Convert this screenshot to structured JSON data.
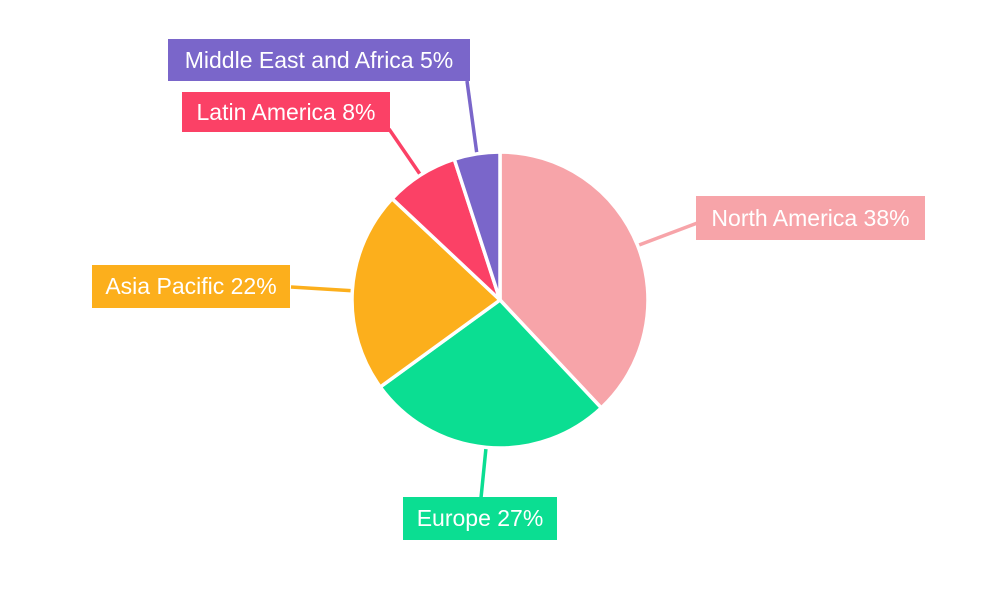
{
  "figure": {
    "background_color": "#FFFFFF"
  },
  "chart_data": {
    "type": "pie",
    "title": "",
    "start_angle_deg": 0,
    "direction": "clockwise",
    "unit": "%",
    "slices": [
      {
        "label": "North America",
        "value": 38,
        "display": "North America 38%",
        "color": "#F7A4A9"
      },
      {
        "label": "Europe",
        "value": 27,
        "display": "Europe 27%",
        "color": "#0BDE92"
      },
      {
        "label": "Asia Pacific",
        "value": 22,
        "display": "Asia Pacific 22%",
        "color": "#FCAF1C"
      },
      {
        "label": "Latin America",
        "value": 8,
        "display": "Latin America 8%",
        "color": "#FB4166"
      },
      {
        "label": "Middle East and Africa",
        "value": 5,
        "display": "Middle East and Africa 5%",
        "color": "#7A66CA"
      }
    ],
    "label_style": "callout-boxes-with-leader-lines",
    "label_text_color": "#FFFFFF",
    "slice_border_color": "#FFFFFF",
    "legend_position": "none"
  }
}
